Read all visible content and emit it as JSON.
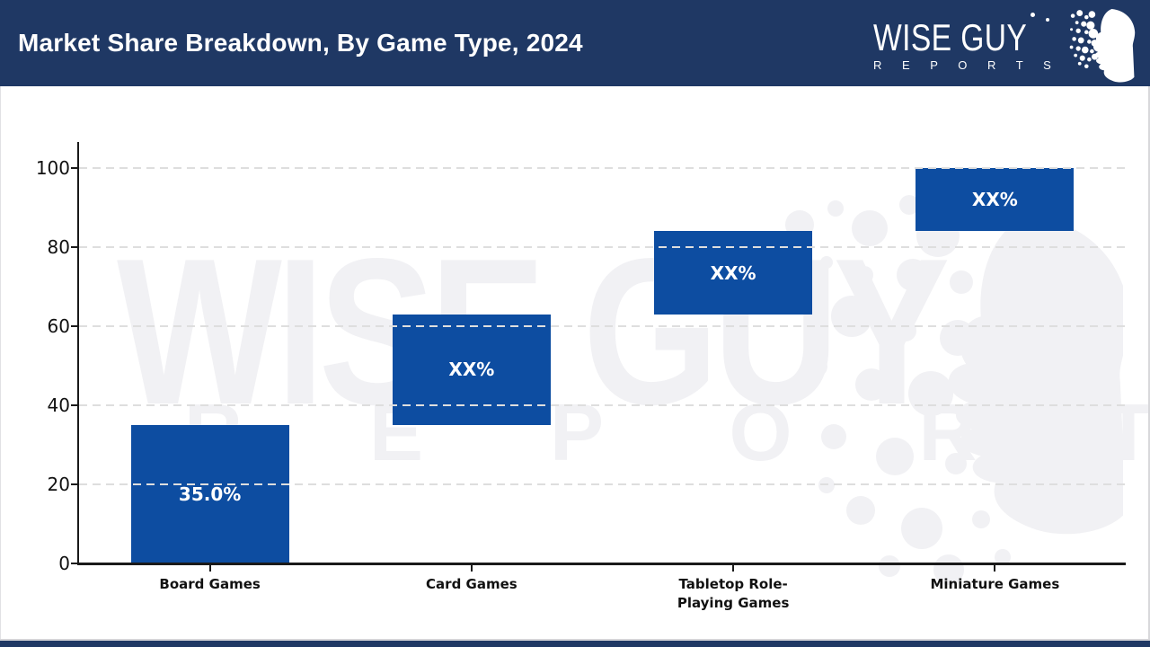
{
  "header": {
    "title": "Market Share Breakdown, By Game Type, 2024",
    "logo_line1": "WISE GUY",
    "logo_line2": "R E P O R T S"
  },
  "watermark": {
    "line1": "WISE GUY",
    "line2": "R E P O R T S"
  },
  "chart_data": {
    "type": "bar",
    "subtype": "floating-waterfall-bars",
    "title": "Market Share Breakdown, By Game Type, 2024",
    "categories": [
      "Board Games",
      "Card Games",
      "Tabletop Role-Playing Games",
      "Miniature Games"
    ],
    "category_label_lines": [
      [
        "Board Games"
      ],
      [
        "Card Games"
      ],
      [
        "Tabletop Role-",
        "Playing Games"
      ],
      [
        "Miniature Games"
      ]
    ],
    "segments": [
      {
        "category": "Board Games",
        "start": 0,
        "end": 35,
        "value_label": "35.0%"
      },
      {
        "category": "Card Games",
        "start": 35,
        "end": 63,
        "value_label": "XX%"
      },
      {
        "category": "Tabletop Role-Playing Games",
        "start": 63,
        "end": 84,
        "value_label": "XX%"
      },
      {
        "category": "Miniature Games",
        "start": 84,
        "end": 100,
        "value_label": "XX%"
      }
    ],
    "xlabel": "",
    "ylabel": "",
    "ylim": [
      0,
      100
    ],
    "yticks": [
      0,
      20,
      40,
      60,
      80,
      100
    ],
    "grid": "horizontal dashed gridlines drawn above bars",
    "legend": "none",
    "colors": {
      "bar": "#0D4DA1",
      "bar_label": "#ffffff",
      "axis": "#1a1a1a",
      "gridline": "#dedede",
      "header_bg": "#1F3864",
      "watermark": "#f1f1f4"
    }
  }
}
